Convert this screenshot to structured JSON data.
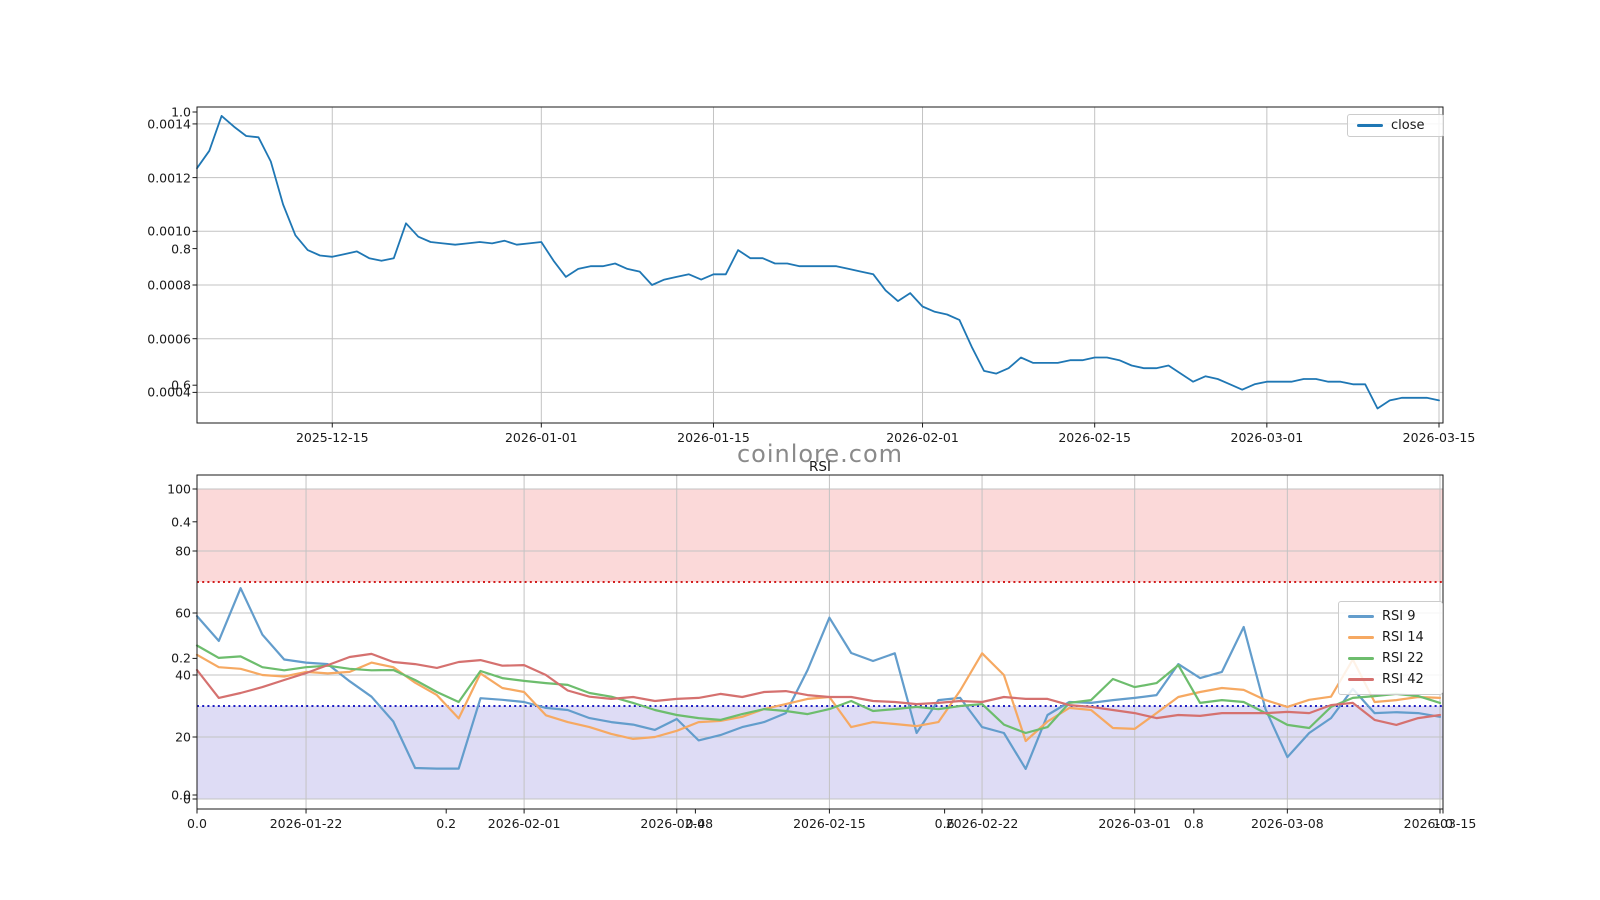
{
  "watermark": "coinlore.com",
  "price_chart": {
    "legend_label": "close",
    "line_color": "#1f77b4",
    "y_ticks": [
      {
        "label": "0.0014",
        "v": 0.0014
      },
      {
        "label": "0.0012",
        "v": 0.0012
      },
      {
        "label": "0.0010",
        "v": 0.001
      },
      {
        "label": "0.0008",
        "v": 0.0008
      },
      {
        "label": "0.0006",
        "v": 0.0006
      },
      {
        "label": "0.0004",
        "v": 0.0004
      }
    ],
    "x_ticks": [
      {
        "label": "2025-12-15",
        "day": 11
      },
      {
        "label": "2026-01-01",
        "day": 28
      },
      {
        "label": "2026-01-15",
        "day": 42
      },
      {
        "label": "2026-02-01",
        "day": 59
      },
      {
        "label": "2026-02-15",
        "day": 73
      },
      {
        "label": "2026-03-01",
        "day": 87
      },
      {
        "label": "2026-03-15",
        "day": 101
      }
    ]
  },
  "rsi_chart": {
    "title": "RSI",
    "overbought_level": 70,
    "oversold_level": 30,
    "overbought_band_color": "#fbd9d9",
    "oversold_band_color": "#dedcf5",
    "overbought_line_color": "#cc0000",
    "oversold_line_color": "#0000bb",
    "y_ticks": [
      {
        "label": "100",
        "v": 100
      },
      {
        "label": "80",
        "v": 80
      },
      {
        "label": "60",
        "v": 60
      },
      {
        "label": "40",
        "v": 40
      },
      {
        "label": "20",
        "v": 20
      },
      {
        "label": "0",
        "v": 0
      }
    ],
    "x_ticks": [
      {
        "label": "2026-01-22",
        "day": 5
      },
      {
        "label": "2026-02-01",
        "day": 15
      },
      {
        "label": "2026-02-08",
        "day": 22
      },
      {
        "label": "2026-02-15",
        "day": 29
      },
      {
        "label": "2026-02-22",
        "day": 36
      },
      {
        "label": "2026-03-01",
        "day": 43
      },
      {
        "label": "2026-03-08",
        "day": 50
      },
      {
        "label": "2026-03-15",
        "day": 57
      }
    ],
    "legend": [
      {
        "label": "RSI 9",
        "color": "#639dcc"
      },
      {
        "label": "RSI 14",
        "color": "#f6a962"
      },
      {
        "label": "RSI 22",
        "color": "#6dbd6d"
      },
      {
        "label": "RSI 42",
        "color": "#d5716f"
      }
    ]
  },
  "overlay_axis_labels": {
    "left": [
      {
        "label": "1.0",
        "f": 1.0
      },
      {
        "label": "0.8",
        "f": 0.8
      },
      {
        "label": "0.6",
        "f": 0.6
      },
      {
        "label": "0.4",
        "f": 0.4
      },
      {
        "label": "0.2",
        "f": 0.2
      },
      {
        "label": "0.0",
        "f": 0.0
      }
    ],
    "bottom": [
      {
        "label": "0.0",
        "f": 0.0
      },
      {
        "label": "0.2",
        "f": 0.2
      },
      {
        "label": "0.4",
        "f": 0.4
      },
      {
        "label": "0.6",
        "f": 0.6
      },
      {
        "label": "0.8",
        "f": 0.8
      },
      {
        "label": "1.0",
        "f": 1.0
      }
    ]
  },
  "chart_data": [
    {
      "type": "line",
      "title": "",
      "xlabel": "",
      "ylabel": "",
      "legend_position": "upper right",
      "grid": true,
      "x_start": "2025-12-04",
      "x_interval": "1 day",
      "ylim": [
        0.000286,
        0.001463
      ],
      "series": [
        {
          "name": "close",
          "color": "#1f77b4",
          "values": [
            0.001235,
            0.0013,
            0.00143,
            0.00139,
            0.001355,
            0.00135,
            0.00126,
            0.0011,
            0.000985,
            0.00093,
            0.00091,
            0.000905,
            0.000915,
            0.000925,
            0.0009,
            0.00089,
            0.0009,
            0.00103,
            0.00098,
            0.00096,
            0.000955,
            0.00095,
            0.000955,
            0.00096,
            0.000955,
            0.000965,
            0.00095,
            0.000955,
            0.00096,
            0.00089,
            0.00083,
            0.00086,
            0.00087,
            0.00087,
            0.00088,
            0.00086,
            0.00085,
            0.0008,
            0.00082,
            0.00083,
            0.00084,
            0.00082,
            0.00084,
            0.00084,
            0.00093,
            0.0009,
            0.0009,
            0.00088,
            0.00088,
            0.00087,
            0.00087,
            0.00087,
            0.00087,
            0.00086,
            0.00085,
            0.00084,
            0.00078,
            0.00074,
            0.00077,
            0.00072,
            0.0007,
            0.00069,
            0.00067,
            0.00057,
            0.00048,
            0.00047,
            0.00049,
            0.00053,
            0.00051,
            0.00051,
            0.00051,
            0.00052,
            0.00052,
            0.00053,
            0.00053,
            0.00052,
            0.0005,
            0.00049,
            0.00049,
            0.0005,
            0.00047,
            0.00044,
            0.00046,
            0.00045,
            0.00043,
            0.00041,
            0.00043,
            0.00044,
            0.00044,
            0.00044,
            0.00045,
            0.00045,
            0.00044,
            0.00044,
            0.00043,
            0.00043,
            0.00034,
            0.00037,
            0.00038,
            0.00038,
            0.00038,
            0.00037
          ]
        }
      ]
    },
    {
      "type": "line",
      "title": "RSI",
      "xlabel": "",
      "ylabel": "",
      "legend_position": "right",
      "grid": true,
      "x_start": "2026-01-17",
      "x_interval": "1 day",
      "ylim": [
        -3.23,
        104.52
      ],
      "bands": [
        {
          "from": 70,
          "to": 100,
          "color": "#fbd9d9",
          "meaning": "overbought"
        },
        {
          "from": 0,
          "to": 30,
          "color": "#dedcf5",
          "meaning": "oversold"
        }
      ],
      "hlines": [
        {
          "y": 70,
          "style": "dotted",
          "color": "#cc0000"
        },
        {
          "y": 30,
          "style": "dotted",
          "color": "#0000bb"
        }
      ],
      "series": [
        {
          "name": "RSI 9",
          "color": "#639dcc",
          "values": [
            59,
            51,
            68,
            53,
            45,
            44,
            43.5,
            38,
            33,
            25,
            10,
            9.8,
            9.8,
            32.5,
            32,
            31.3,
            29.4,
            28.7,
            26.1,
            24.8,
            24,
            22.3,
            25.8,
            18.9,
            20.6,
            23.2,
            24.8,
            27.7,
            41.6,
            58.5,
            47.1,
            44.5,
            47,
            21.3,
            31.9,
            32.6,
            23.2,
            21.3,
            9.7,
            27.1,
            31.3,
            31,
            31.9,
            32.6,
            33.5,
            43.5,
            39,
            41,
            55.5,
            29,
            13.5,
            21.3,
            26.1,
            35.5,
            27.7,
            28,
            27.7,
            26.5
          ]
        },
        {
          "name": "RSI 14",
          "color": "#f6a962",
          "values": [
            46.5,
            42.5,
            42,
            40,
            39.5,
            41,
            40.5,
            41,
            44,
            42.5,
            37.5,
            33.5,
            26,
            40.5,
            35.8,
            34.5,
            27,
            24.8,
            23.2,
            21,
            19.4,
            20,
            22,
            24.8,
            25.2,
            26.5,
            29,
            30.6,
            32.3,
            32.9,
            23.2,
            24.8,
            24.2,
            23.5,
            24.8,
            35,
            47,
            40,
            18.7,
            25,
            29.4,
            28.7,
            22.9,
            22.6,
            27.7,
            32.9,
            34.5,
            35.8,
            35.2,
            31.9,
            29.7,
            32,
            33,
            45,
            31.3,
            31.9,
            32.9,
            32.6
          ]
        },
        {
          "name": "RSI 22",
          "color": "#6dbd6d",
          "values": [
            49.5,
            45.5,
            46,
            42.5,
            41.5,
            42.5,
            43,
            42,
            41.5,
            41.6,
            38.4,
            34.5,
            31.3,
            41.3,
            39,
            38.1,
            37.4,
            36.8,
            34.2,
            33,
            31,
            28.7,
            27.1,
            26.1,
            25.5,
            27.4,
            29,
            28.4,
            27.4,
            29,
            31.6,
            28.4,
            29,
            29.7,
            29,
            30,
            30.6,
            24,
            21.3,
            23.2,
            31,
            31.9,
            38.7,
            36.1,
            37.4,
            43.2,
            31,
            31.9,
            31.3,
            27.7,
            23.9,
            22.9,
            29.7,
            32.6,
            33.2,
            33.9,
            33.2,
            31
          ]
        },
        {
          "name": "RSI 42",
          "color": "#d5716f",
          "values": [
            41.6,
            32.6,
            34.2,
            36.1,
            38.4,
            40.6,
            43.2,
            45.8,
            46.8,
            44.2,
            43.5,
            42.3,
            44.2,
            44.8,
            43,
            43.2,
            40,
            35,
            33,
            32.3,
            32.9,
            31.6,
            32.3,
            32.6,
            33.9,
            32.9,
            34.5,
            34.8,
            33.5,
            32.9,
            32.9,
            31.6,
            31.3,
            30.6,
            31,
            31.6,
            31.3,
            32.9,
            32.3,
            32.3,
            30.3,
            29.7,
            28.7,
            27.7,
            26.1,
            27.1,
            26.8,
            27.7,
            27.7,
            27.7,
            28.1,
            27.7,
            30.3,
            31,
            25.5,
            23.9,
            26.1,
            27.1
          ]
        }
      ]
    }
  ]
}
